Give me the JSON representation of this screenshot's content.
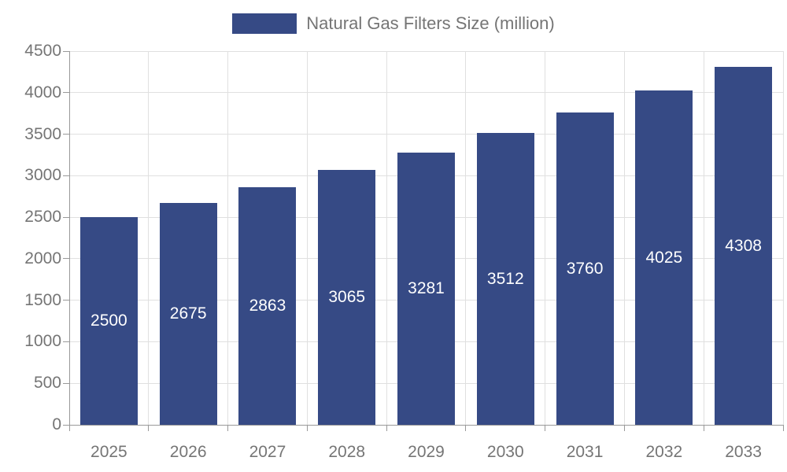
{
  "chart_data": {
    "type": "bar",
    "title": "Natural Gas Filters Size (million)",
    "legend": {
      "label": "Natural Gas Filters Size (million)",
      "position": "top-center"
    },
    "categories": [
      "2025",
      "2026",
      "2027",
      "2028",
      "2029",
      "2030",
      "2031",
      "2032",
      "2033"
    ],
    "values": [
      2500,
      2675,
      2863,
      3065,
      3281,
      3512,
      3760,
      4025,
      4308
    ],
    "value_labels_shown": true,
    "value_label_position": "inside-center",
    "xlabel": "",
    "ylabel": "",
    "ylim": [
      0,
      4500
    ],
    "yticks": [
      0,
      500,
      1000,
      1500,
      2000,
      2500,
      3000,
      3500,
      4000,
      4500
    ],
    "grid": true,
    "colors": {
      "bar": "#364A85",
      "grid": "#E0E0E0",
      "axis": "#999999",
      "tick_label": "#757575",
      "legend_text": "#757575",
      "value_label": "#FFFFFF",
      "background": "#FFFFFF"
    }
  }
}
